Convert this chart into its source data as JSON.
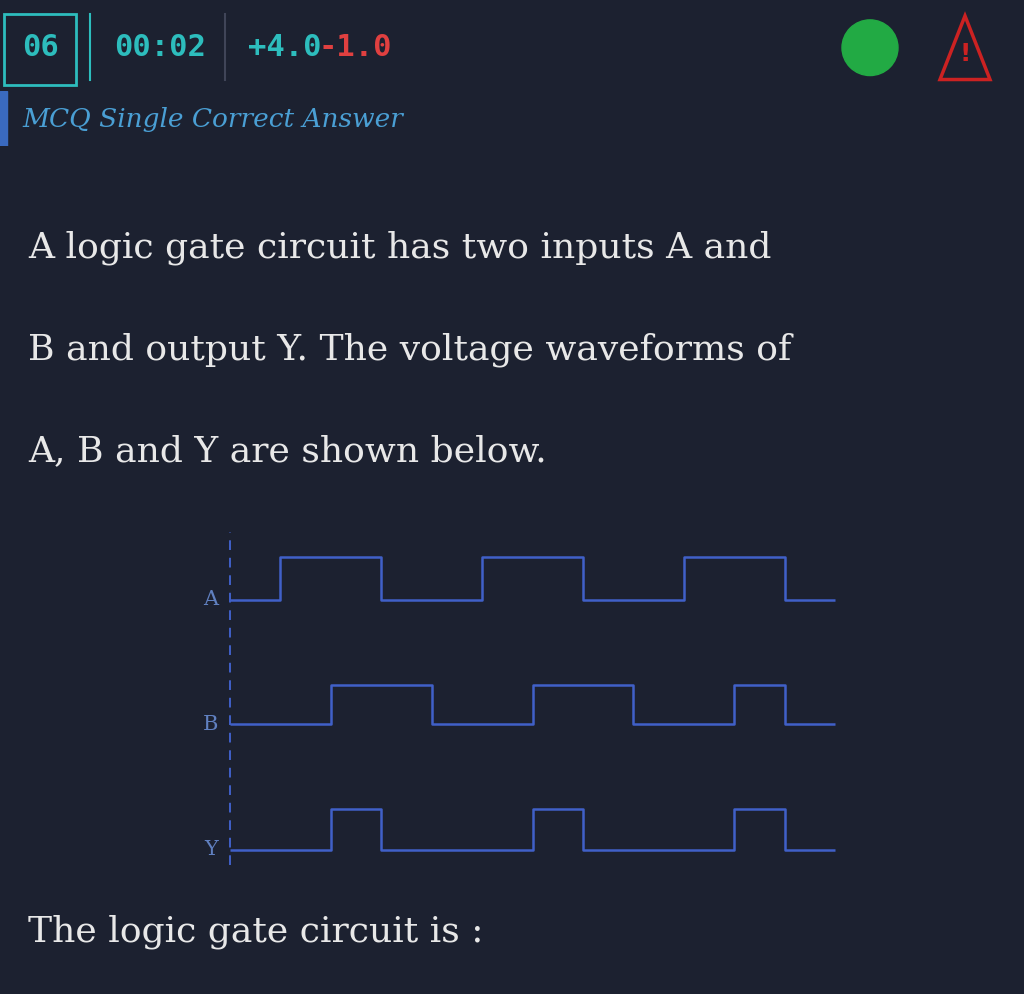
{
  "bg_color": "#1c2130",
  "header_bg": "#252a3a",
  "mcq_bar_bg": "#252a3a",
  "mcq_bar_accent": "#3a6abf",
  "mcq_text": "MCQ Single Correct Answer",
  "mcq_text_color": "#4a9fd4",
  "question_text_color": "#e8e8e8",
  "question_lines": [
    "A logic gate circuit has two inputs A and",
    "B and output Y. The voltage waveforms of",
    "A, B and Y are shown below."
  ],
  "bottom_text": "The logic gate circuit is :",
  "bottom_text_color": "#e8e8e8",
  "header_num": "06",
  "header_time": "00:02",
  "header_pos": "+4.0",
  "header_neg": "-1.0",
  "num_color": "#2dbdbd",
  "time_color": "#2dbdbd",
  "pos_color": "#2dbdbd",
  "neg_color": "#e04040",
  "wave_color": "#4060c8",
  "dashed_line_color": "#4060c8",
  "label_color": "#6080c0",
  "wave_lw": 1.8,
  "a_pattern": [
    0,
    1,
    1,
    0,
    0,
    1,
    1,
    0,
    0,
    1,
    1,
    0
  ],
  "b_pattern": [
    0,
    0,
    1,
    1,
    0,
    0,
    1,
    1,
    0,
    0,
    1,
    0
  ],
  "y_pattern": [
    0,
    0,
    1,
    0,
    0,
    0,
    1,
    0,
    0,
    0,
    1,
    0
  ]
}
